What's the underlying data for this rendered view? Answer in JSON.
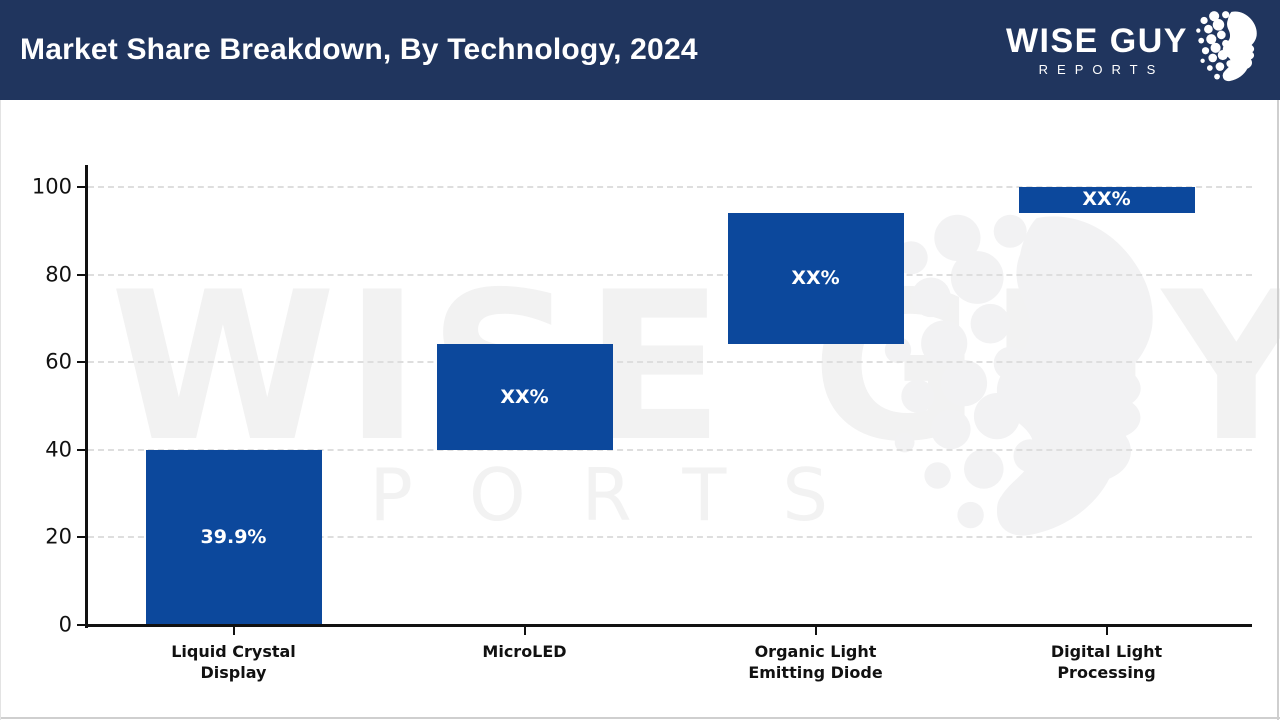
{
  "page": {
    "bg_color": "#FFFFFF",
    "edge_color": "#CFCFCF"
  },
  "header": {
    "bg_color": "#20355E",
    "title": "Market Share Breakdown, By Technology, 2024",
    "logo": {
      "line1": "WISE GUY",
      "line2": "REPORTS"
    }
  },
  "watermark": {
    "line1": "WISE GUY",
    "line2": "REPORTS"
  },
  "chart_data": {
    "type": "bar",
    "subtype": "waterfall",
    "title": "Market Share Breakdown, By Technology, 2024",
    "categories": [
      "Liquid Crystal Display",
      "MicroLED",
      "Organic Light Emitting Diode",
      "Digital Light Processing"
    ],
    "segments": [
      {
        "category_lines": [
          "Liquid Crystal",
          "Display"
        ],
        "start": 0,
        "end": 39.9,
        "label": "39.9%"
      },
      {
        "category_lines": [
          "MicroLED"
        ],
        "start": 39.9,
        "end": 64.2,
        "label": "XX%"
      },
      {
        "category_lines": [
          "Organic Light",
          "Emitting Diode"
        ],
        "start": 64.2,
        "end": 94.1,
        "label": "XX%"
      },
      {
        "category_lines": [
          "Digital Light",
          "Processing"
        ],
        "start": 94.1,
        "end": 100,
        "label": "XX%"
      }
    ],
    "ylim": [
      0,
      100
    ],
    "yticks": [
      0,
      20,
      40,
      60,
      80,
      100
    ],
    "xlabel": "",
    "ylabel": "",
    "grid": "horizontal-dashed",
    "legend": "none",
    "bar_color": "#0C489C",
    "bar_label_color": "#FFFFFF",
    "grid_color": "#DEDEDE",
    "axis_color": "#111111"
  }
}
